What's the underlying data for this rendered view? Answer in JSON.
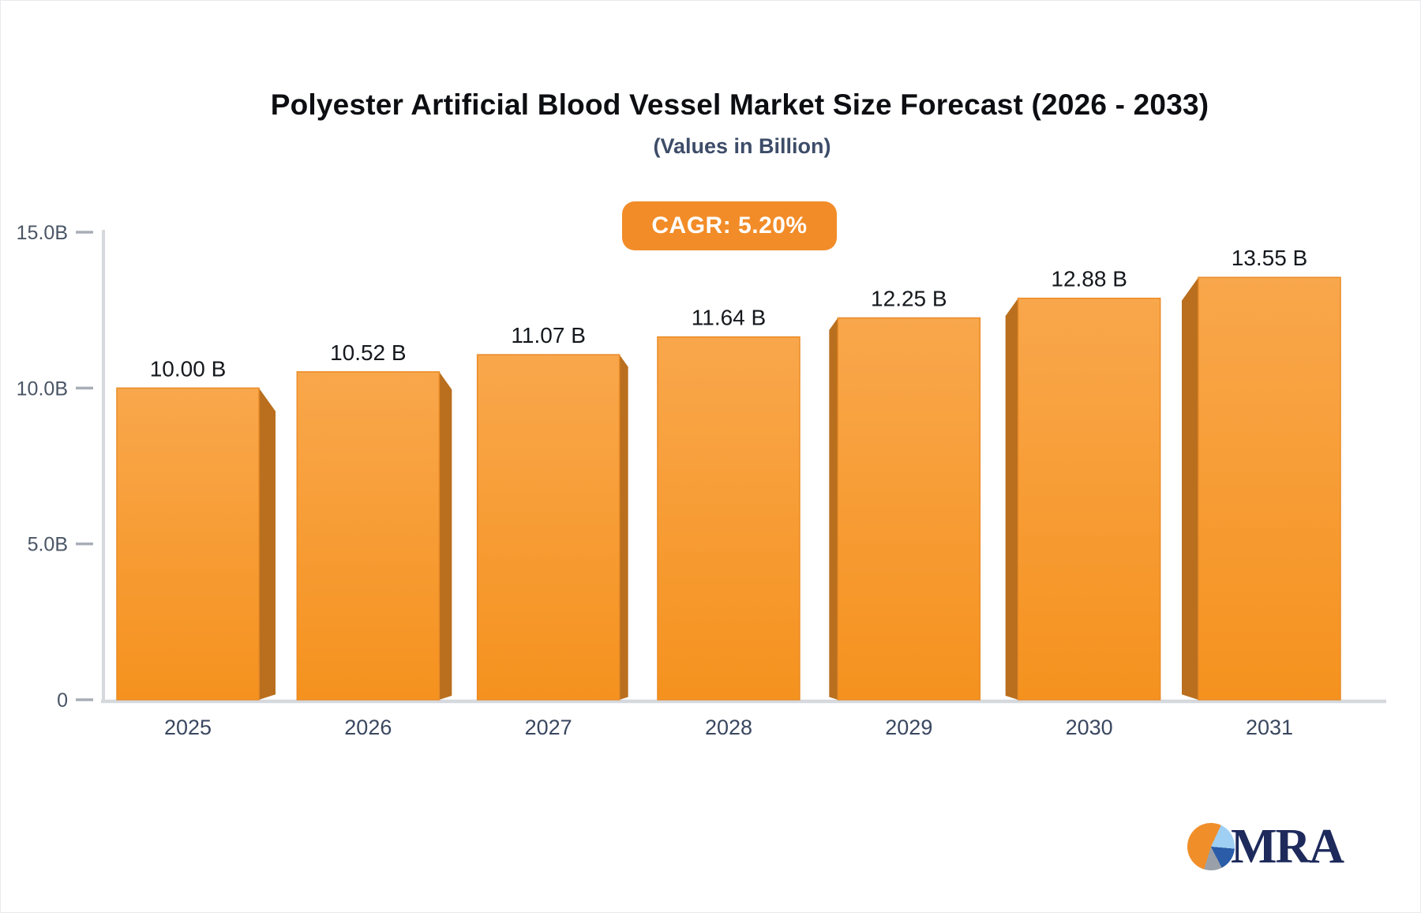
{
  "header": {
    "title": "Polyester Artificial Blood Vessel Market Size Forecast (2026 - 2033)",
    "subtitle": "(Values in Billion)"
  },
  "badge": {
    "label": "CAGR: 5.20%",
    "bg_color": "#F28C28",
    "text_color": "#FFFFFF"
  },
  "chart_data": {
    "type": "bar",
    "title": "Polyester Artificial Blood Vessel Market Size Forecast (2026 - 2033)",
    "subtitle": "(Values in Billion)",
    "categories": [
      "2025",
      "2026",
      "2027",
      "2028",
      "2029",
      "2030",
      "2031"
    ],
    "values": [
      10.0,
      10.52,
      11.07,
      11.64,
      12.25,
      12.88,
      13.55
    ],
    "value_labels": [
      "10.00 B",
      "10.52 B",
      "11.07 B",
      "11.64 B",
      "12.25 B",
      "12.88 B",
      "13.55 B"
    ],
    "xlabel": "",
    "ylabel": "",
    "ylim": [
      0,
      15
    ],
    "yticks": [
      {
        "value": 0,
        "label": "0"
      },
      {
        "value": 5,
        "label": "5.0B"
      },
      {
        "value": 10,
        "label": "10.0B"
      },
      {
        "value": 15,
        "label": "15.0B"
      }
    ],
    "grid": false,
    "legend": null,
    "bar_style": {
      "face_top": "#F9A74C",
      "face_bottom": "#F5921E",
      "face_border": "#EA8B27",
      "side_3d": "#B96F1E"
    },
    "axis_style": {
      "line_color": "#D5D8DC",
      "tick_color": "#A9AEB6",
      "ytick_label_color": "#4A5566",
      "xtick_label_color": "#3A4760",
      "value_label_color": "#15181D"
    }
  },
  "logo": {
    "text": "MRA",
    "text_color": "#1D2A5B",
    "pie_colors": {
      "orange": "#F08F2A",
      "light_blue": "#9FCFF2",
      "blue": "#2A5CA8",
      "gray": "#99A0A9"
    }
  }
}
